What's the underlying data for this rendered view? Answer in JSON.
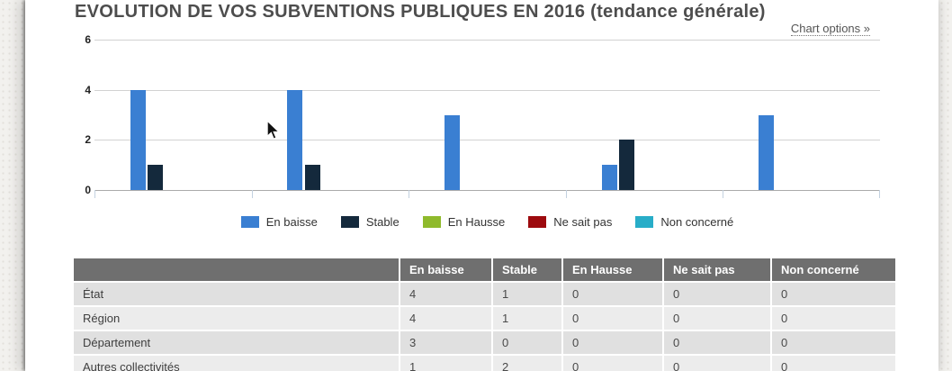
{
  "page": {
    "title": "EVOLUTION DE VOS SUBVENTIONS PUBLIQUES EN 2016 (tendance générale)",
    "chart_options_label": "Chart options »"
  },
  "colors": {
    "en_baisse": "#3a7fd2",
    "stable": "#14293c",
    "en_hausse": "#8fba2c",
    "ne_sait_pas": "#9d0a0e",
    "non_concerne": "#28adc8",
    "table_header_bg": "#6f6f6f",
    "row_odd_bg": "#e0e0e0",
    "row_even_bg": "#ececec",
    "gridline": "#d2d2d2"
  },
  "chart_data": {
    "type": "bar",
    "title": "EVOLUTION DE VOS SUBVENTIONS PUBLIQUES EN 2016 (tendance générale)",
    "categories": [
      "État",
      "Région",
      "Département",
      "Autres collectivités",
      ""
    ],
    "series": [
      {
        "name": "En baisse",
        "color": "#3a7fd2",
        "values": [
          4,
          4,
          3,
          1,
          3
        ]
      },
      {
        "name": "Stable",
        "color": "#14293c",
        "values": [
          1,
          1,
          0,
          2,
          0
        ]
      },
      {
        "name": "En Hausse",
        "color": "#8fba2c",
        "values": [
          0,
          0,
          0,
          0,
          0
        ]
      },
      {
        "name": "Ne sait pas",
        "color": "#9d0a0e",
        "values": [
          0,
          0,
          0,
          0,
          0
        ]
      },
      {
        "name": "Non concerné",
        "color": "#28adc8",
        "values": [
          0,
          0,
          0,
          0,
          0
        ]
      }
    ],
    "xlabel": "",
    "ylabel": "",
    "ylim": [
      0,
      6
    ],
    "yticks": [
      0,
      2,
      4,
      6
    ],
    "grid": true,
    "legend_position": "bottom"
  },
  "table": {
    "columns": [
      "",
      "En baisse",
      "Stable",
      "En Hausse",
      "Ne sait pas",
      "Non concerné"
    ],
    "rows": [
      {
        "label": "État",
        "values": [
          4,
          1,
          0,
          0,
          0
        ]
      },
      {
        "label": "Région",
        "values": [
          4,
          1,
          0,
          0,
          0
        ]
      },
      {
        "label": "Département",
        "values": [
          3,
          0,
          0,
          0,
          0
        ]
      },
      {
        "label": "Autres collectivités",
        "values": [
          1,
          2,
          0,
          0,
          0
        ]
      }
    ]
  }
}
